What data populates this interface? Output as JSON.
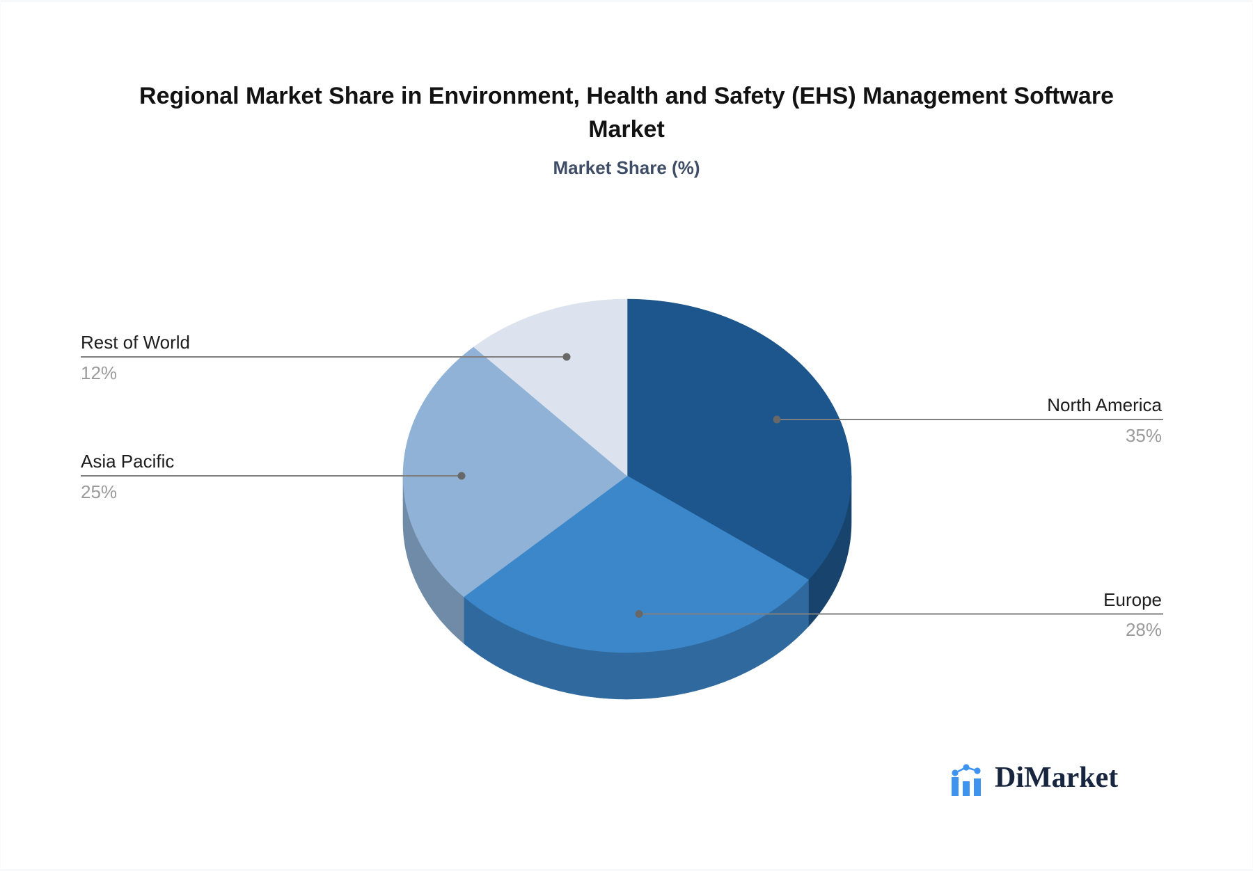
{
  "page": {
    "title_line1": "Regional Market Share in Environment, Health and Safety (EHS) Management Software",
    "title_line2": "Market",
    "subtitle": "Market Share (%)"
  },
  "chart_data": {
    "type": "pie",
    "style": "3d",
    "title": "Regional Market Share in Environment, Health and Safety (EHS) Management Software Market",
    "subtitle": "Market Share (%)",
    "unit": "%",
    "direction": "clockwise",
    "start_angle_deg": 0,
    "legend": "none",
    "categories": [
      "North America",
      "Europe",
      "Asia Pacific",
      "Rest of World"
    ],
    "values": [
      35,
      28,
      25,
      12
    ],
    "slices": [
      {
        "label": "North America",
        "value": 35,
        "display": "35%",
        "color": "#1d568c"
      },
      {
        "label": "Europe",
        "value": 28,
        "display": "28%",
        "color": "#3c87c9"
      },
      {
        "label": "Asia Pacific",
        "value": 25,
        "display": "25%",
        "color": "#8fb2d6"
      },
      {
        "label": "Rest of World",
        "value": 12,
        "display": "12%",
        "color": "#dce3ee"
      }
    ],
    "leader_line_color": "#7f7f7f",
    "label_color": "#1d1d1d",
    "percent_label_color": "#9b9b9b"
  },
  "branding": {
    "logo_text": "DiMarket",
    "logo_icon": "bar-chart-trend-icon",
    "logo_icon_color": "#3e93ee",
    "logo_text_color": "#17263e"
  }
}
